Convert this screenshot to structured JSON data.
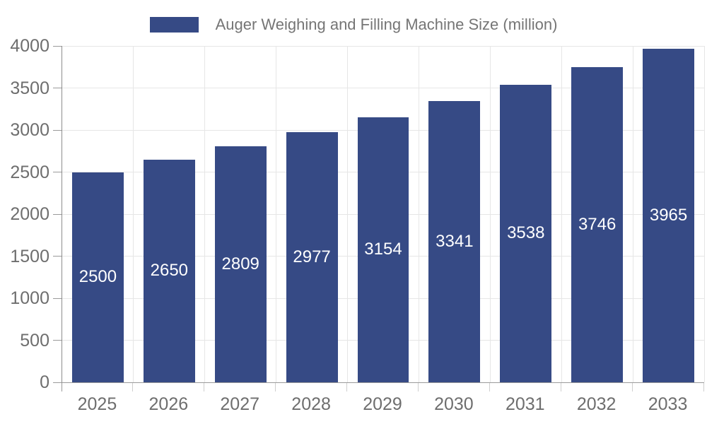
{
  "colors": {
    "bar": "#364A85",
    "grid": "#E6E6E6",
    "axis_y": "#8C8C8C",
    "axis_x": "#9A9A9A",
    "tick_x": "#CFCFCF",
    "tick_y": "#9A9A9A",
    "label": "#6E6E6E",
    "value_label": "#FFFFFF",
    "legend_text": "#757575",
    "background": "#FFFFFF"
  },
  "chart_data": {
    "type": "bar",
    "title": "Auger Weighing and Filling Machine Size (million)",
    "categories": [
      "2025",
      "2026",
      "2027",
      "2028",
      "2029",
      "2030",
      "2031",
      "2032",
      "2033"
    ],
    "values": [
      2500,
      2650,
      2809,
      2977,
      3154,
      3341,
      3538,
      3746,
      3965
    ],
    "xlabel": "",
    "ylabel": "",
    "ylim": [
      0,
      4000
    ],
    "yticks": [
      0,
      500,
      1000,
      1500,
      2000,
      2500,
      3000,
      3500,
      4000
    ],
    "grid": true,
    "grid_vertical": true,
    "legend_position": "top-center",
    "value_label_position": "inside-middle"
  }
}
